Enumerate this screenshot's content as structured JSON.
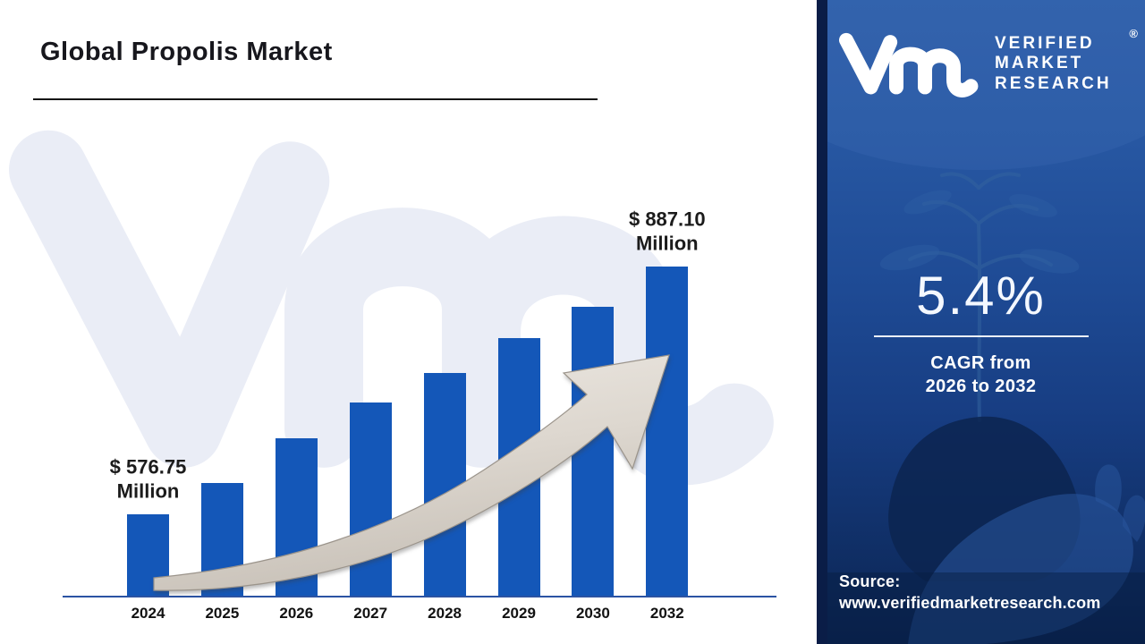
{
  "header": {
    "title": "Global Propolis Market"
  },
  "chart_data": {
    "type": "bar",
    "title": "Global Propolis Market",
    "unit": "USD Million",
    "categories": [
      "2024",
      "2025",
      "2026",
      "2027",
      "2028",
      "2029",
      "2030",
      "2032"
    ],
    "values": [
      576.75,
      616,
      672,
      717,
      754,
      797,
      837,
      887.1
    ],
    "value_labels_shown_only_for": [
      "2024",
      "2032"
    ],
    "annotations": [
      {
        "index": 0,
        "line1": "$ 576.75",
        "line2": "Million"
      },
      {
        "index": 7,
        "line1": "$ 887.10",
        "line2": "Million"
      }
    ],
    "xlabel": "",
    "ylabel": "",
    "grid": false,
    "legend": false,
    "note": "Only 2024 ($576.75M) and 2032 ($887.10M) are labeled on the chart; intermediate values are estimated from bar heights."
  },
  "panel": {
    "logo_lines": [
      "VERIFIED",
      "MARKET",
      "RESEARCH"
    ],
    "registered_mark": "®",
    "cagr_value": "5.4%",
    "cagr_line1": "CAGR from",
    "cagr_line2": "2026 to 2032",
    "source_label": "Source:",
    "source_url": "www.verifiedmarketresearch.com"
  },
  "colors": {
    "bar_blue": "#1457b8",
    "axis_blue": "#2b53a3",
    "panel_navy_strip": "#0a1d47",
    "panel_blue": "#1e4a94",
    "arrow_silver": "#d9d3cb",
    "watermark_gray": "#eaedf6",
    "title_dark": "#17171d",
    "text_white": "#ffffff"
  }
}
